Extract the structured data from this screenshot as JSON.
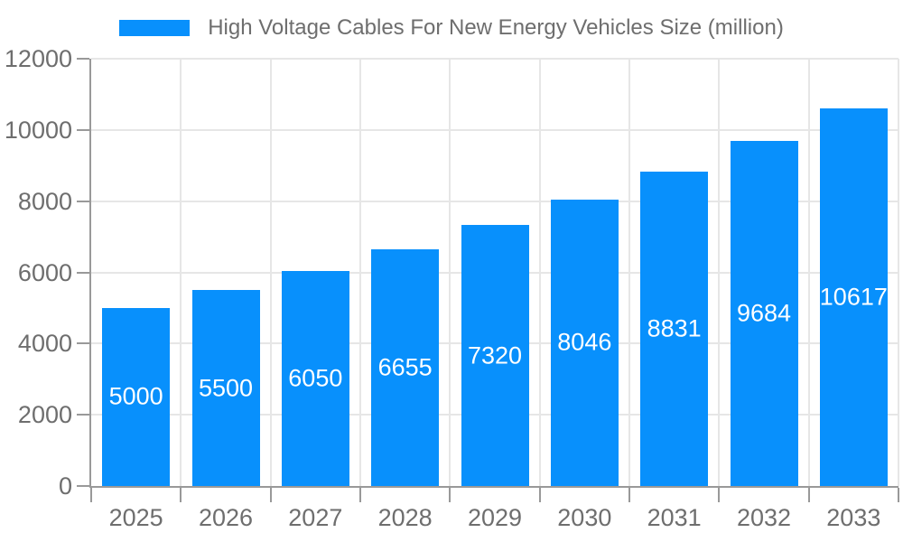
{
  "legend": {
    "label": "High Voltage Cables For New Energy Vehicles Size (million)"
  },
  "chart_data": {
    "type": "bar",
    "title": "High Voltage Cables For New Energy Vehicles Size (million)",
    "categories": [
      "2025",
      "2026",
      "2027",
      "2028",
      "2029",
      "2030",
      "2031",
      "2032",
      "2033"
    ],
    "values": [
      5000,
      5500,
      6050,
      6655,
      7320,
      8046,
      8831,
      9684,
      10617
    ],
    "xlabel": "",
    "ylabel": "",
    "ylim": [
      0,
      12000
    ],
    "yticks": [
      0,
      2000,
      4000,
      6000,
      8000,
      10000,
      12000
    ],
    "grid": true,
    "legend_position": "top",
    "value_labels": "inside-center"
  },
  "colors": {
    "bar": "#0890fc",
    "text": "#6e6e6e",
    "grid": "#e6e6e6",
    "axis": "#999999",
    "value_label": "#ffffff",
    "background": "#ffffff"
  }
}
